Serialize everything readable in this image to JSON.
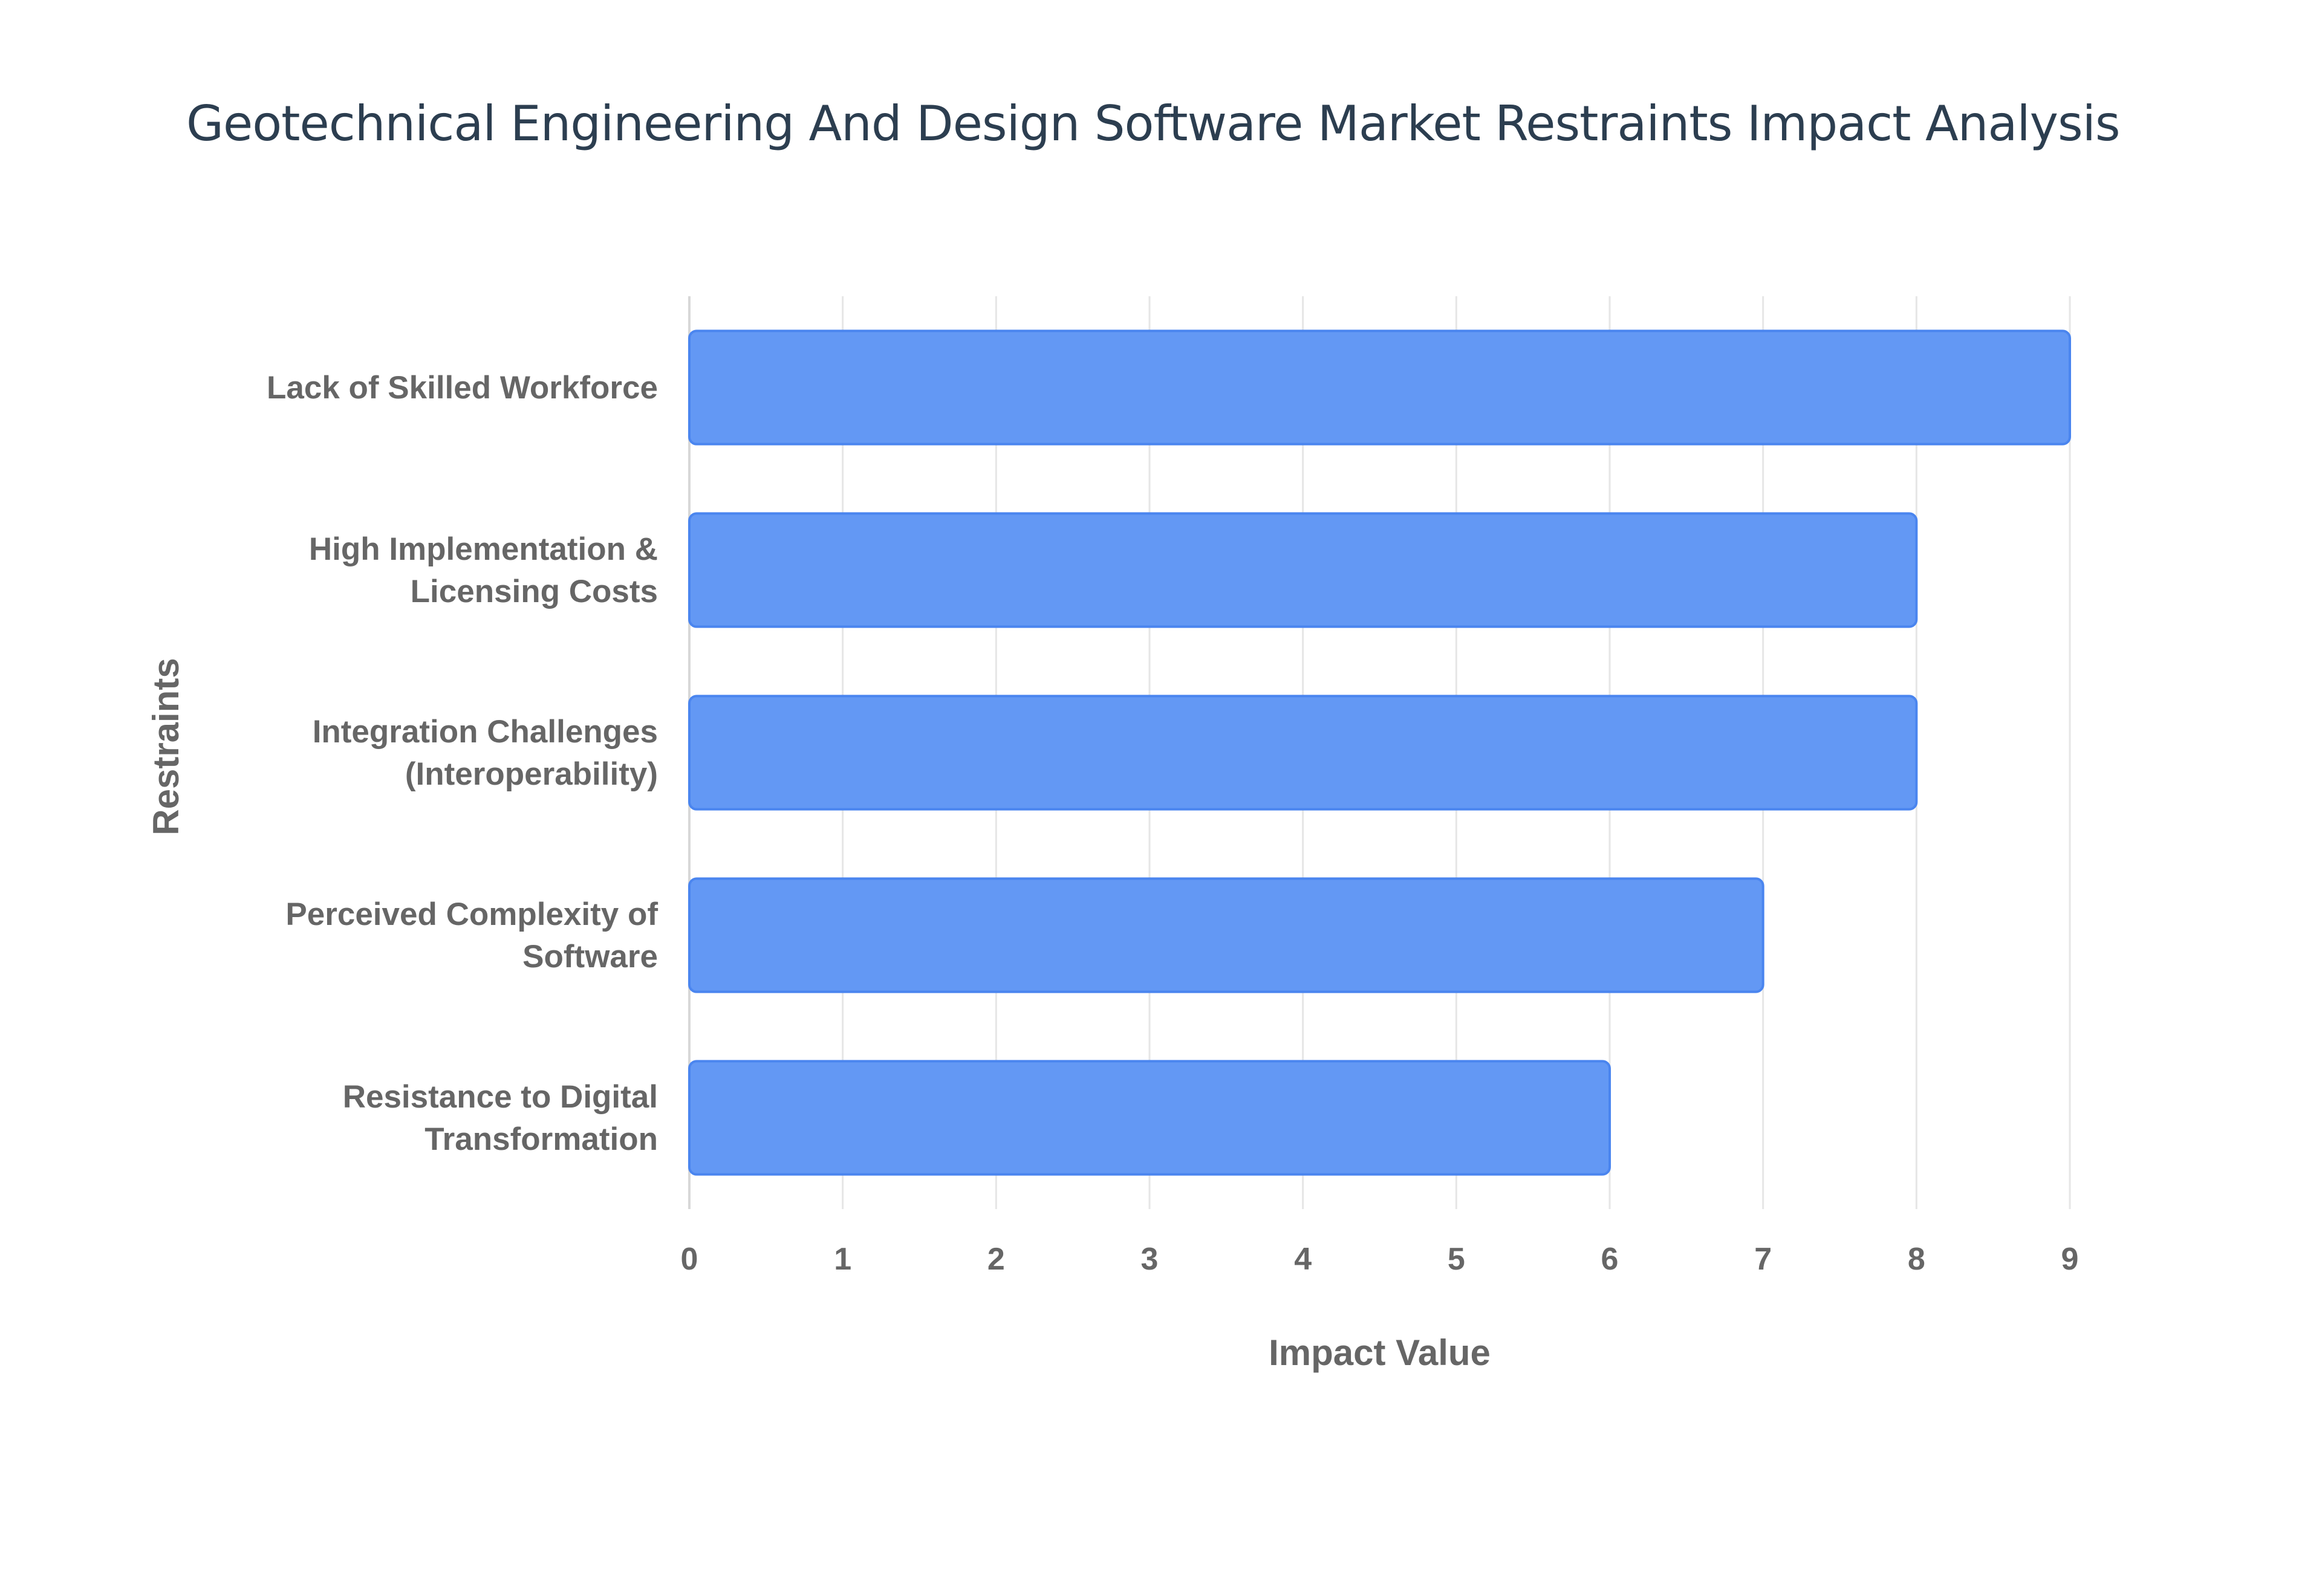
{
  "chart_data": {
    "type": "bar",
    "orientation": "horizontal",
    "title": "Geotechnical Engineering And Design Software Market Restraints Impact Analysis",
    "xlabel": "Impact Value",
    "ylabel": "Restraints",
    "categories": [
      [
        "Lack of Skilled Workforce"
      ],
      [
        "High Implementation &",
        "Licensing Costs"
      ],
      [
        "Integration Challenges",
        "(Interoperability)"
      ],
      [
        "Perceived Complexity of",
        "Software"
      ],
      [
        "Resistance to Digital",
        "Transformation"
      ]
    ],
    "values": [
      9,
      8,
      8,
      7,
      6
    ],
    "xlim": [
      0,
      9
    ],
    "xticks": [
      "0",
      "1",
      "2",
      "3",
      "4",
      "5",
      "6",
      "7",
      "8",
      "9"
    ],
    "grid": true,
    "bar_color": "#6398f4",
    "bar_border_color": "#4a85ef"
  }
}
